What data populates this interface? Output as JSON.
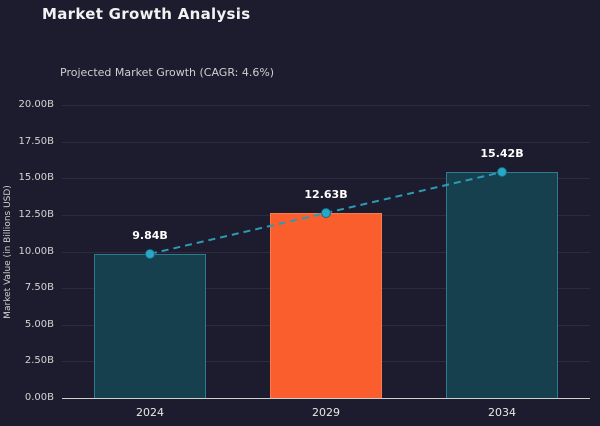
{
  "header": {
    "title": "Market Growth Analysis"
  },
  "chart_data": {
    "type": "bar",
    "title": "Projected Market Growth (CAGR: 4.6%)",
    "categories": [
      "2024",
      "2029",
      "2034"
    ],
    "values": [
      9.84,
      12.63,
      15.42
    ],
    "data_labels": [
      "9.84B",
      "12.63B",
      "15.42B"
    ],
    "bar_colors": [
      "#17404f",
      "#fa5e2c",
      "#17404f"
    ],
    "bar_border_colors": [
      "#2f7a8f",
      "#fb7a4e",
      "#2f7a8f"
    ],
    "line_color": "#2e9ab5",
    "line_style": "dashed",
    "marker_color": "#2aa7c7",
    "background_color": "#1c1c2e",
    "xlabel": "",
    "ylabel": "Market Value (in Billions USD)",
    "ylim": [
      0,
      20
    ],
    "yticks": [
      "0.00B",
      "2.50B",
      "5.00B",
      "7.50B",
      "10.00B",
      "12.50B",
      "15.00B",
      "17.50B",
      "20.00B"
    ],
    "grid": true,
    "legend_position": "none"
  }
}
